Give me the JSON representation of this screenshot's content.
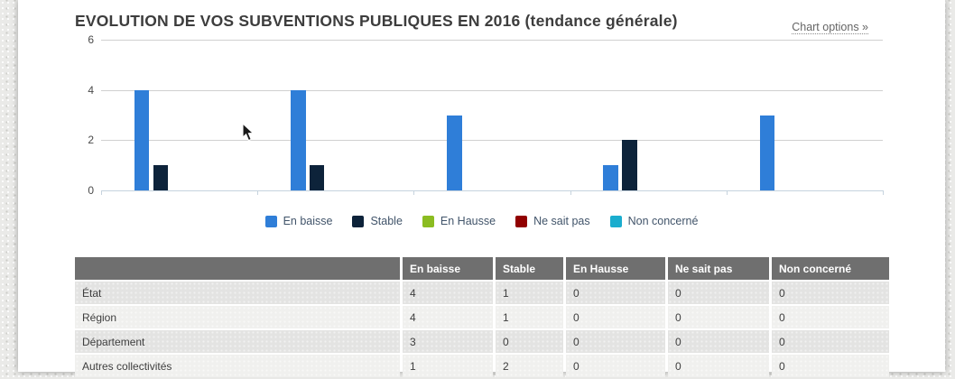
{
  "page": {
    "title": "EVOLUTION DE VOS SUBVENTIONS PUBLIQUES EN 2016 (tendance générale)",
    "chart_options_label": "Chart options »"
  },
  "chart_data": {
    "type": "bar",
    "title": "EVOLUTION DE VOS SUBVENTIONS PUBLIQUES EN 2016 (tendance générale)",
    "categories": [
      "État",
      "Région",
      "Département",
      "Autres collectivités",
      ""
    ],
    "series": [
      {
        "name": "En baisse",
        "key": "en-baisse",
        "color": "#2f7ed8",
        "values": [
          4,
          4,
          3,
          1,
          3
        ]
      },
      {
        "name": "Stable",
        "key": "stable",
        "color": "#0d233a",
        "values": [
          1,
          1,
          0,
          2,
          0
        ]
      },
      {
        "name": "En Hausse",
        "key": "en-hausse",
        "color": "#8bbc21",
        "values": [
          0,
          0,
          0,
          0,
          0
        ]
      },
      {
        "name": "Ne sait pas",
        "key": "ne-sait-pas",
        "color": "#910000",
        "values": [
          0,
          0,
          0,
          0,
          0
        ]
      },
      {
        "name": "Non concerné",
        "key": "non-concerne",
        "color": "#1aadce",
        "values": [
          0,
          0,
          0,
          0,
          0
        ]
      }
    ],
    "xlabel": "",
    "ylabel": "",
    "ylim": [
      0,
      6
    ],
    "yticks": [
      0,
      2,
      4,
      6
    ],
    "x_tick_labels_visible": false,
    "grid": true,
    "legend_position": "bottom"
  },
  "table": {
    "headers": [
      "",
      "En baisse",
      "Stable",
      "En Hausse",
      "Ne sait pas",
      "Non concerné"
    ],
    "rows": [
      {
        "label": "État",
        "values": [
          "4",
          "1",
          "0",
          "0",
          "0"
        ]
      },
      {
        "label": "Région",
        "values": [
          "4",
          "1",
          "0",
          "0",
          "0"
        ]
      },
      {
        "label": "Département",
        "values": [
          "3",
          "0",
          "0",
          "0",
          "0"
        ]
      },
      {
        "label": "Autres collectivités",
        "values": [
          "1",
          "2",
          "0",
          "0",
          "0"
        ]
      }
    ]
  },
  "colors": {
    "en_baisse": "#2f7ed8",
    "stable": "#0d233a",
    "en_hausse": "#8bbc21",
    "ne_sait_pas": "#910000",
    "non_concerne": "#1aadce",
    "table_header_bg": "#6f6f6f",
    "row_odd_bg": "#e3e3e2",
    "row_even_bg": "#f0f0ee",
    "gridline": "#d0d0d0",
    "axis": "#c6d3de"
  }
}
